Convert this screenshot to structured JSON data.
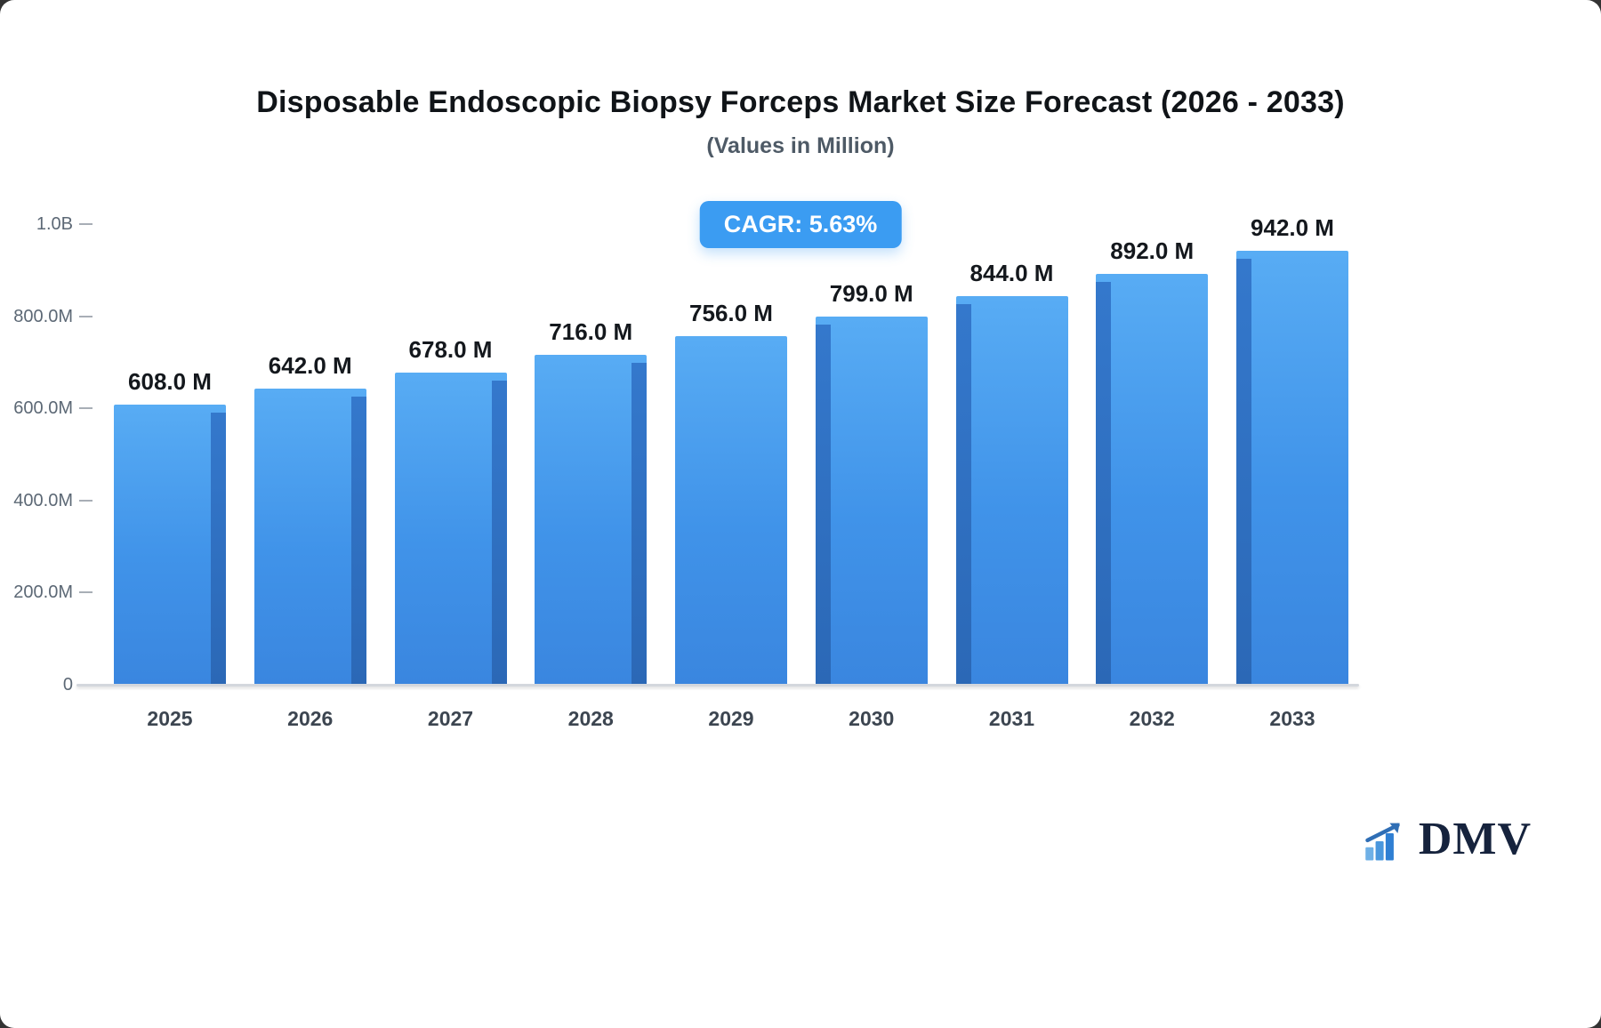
{
  "page": {
    "background": "#ffffff",
    "accent": "#3b9cf2"
  },
  "header": {
    "title": "Disposable Endoscopic Biopsy Forceps Market Size Forecast (2026 - 2033)",
    "subtitle": "(Values in Million)"
  },
  "badge": {
    "label": "CAGR: 5.63%",
    "color": "#3b9cf2"
  },
  "logo": {
    "text": "DMV"
  },
  "chart_data": {
    "type": "bar",
    "title": "Disposable Endoscopic Biopsy Forceps Market Size Forecast (2026 - 2033)",
    "subtitle": "(Values in Million)",
    "cagr_label": "CAGR: 5.63%",
    "categories": [
      "2025",
      "2026",
      "2027",
      "2028",
      "2029",
      "2030",
      "2031",
      "2032",
      "2033"
    ],
    "values": [
      608,
      642,
      678,
      716,
      756,
      799,
      844,
      892,
      942
    ],
    "value_labels": [
      "608.0 M",
      "642.0 M",
      "678.0 M",
      "716.0 M",
      "756.0 M",
      "799.0 M",
      "844.0 M",
      "892.0 M",
      "942.0 M"
    ],
    "unit": "Million",
    "xlabel": "",
    "ylabel": "",
    "ylim": [
      0,
      1000
    ],
    "yticks": [
      {
        "label": "0",
        "value": 0
      },
      {
        "label": "200.0M",
        "value": 200
      },
      {
        "label": "400.0M",
        "value": 400
      },
      {
        "label": "600.0M",
        "value": 600
      },
      {
        "label": "800.0M",
        "value": 800
      },
      {
        "label": "1.0B",
        "value": 1000
      }
    ],
    "grid": false,
    "legend": null,
    "bar_color_top": "#58acf4",
    "bar_color_bottom": "#3a86df",
    "bar_side_color": "#2b68b6"
  }
}
